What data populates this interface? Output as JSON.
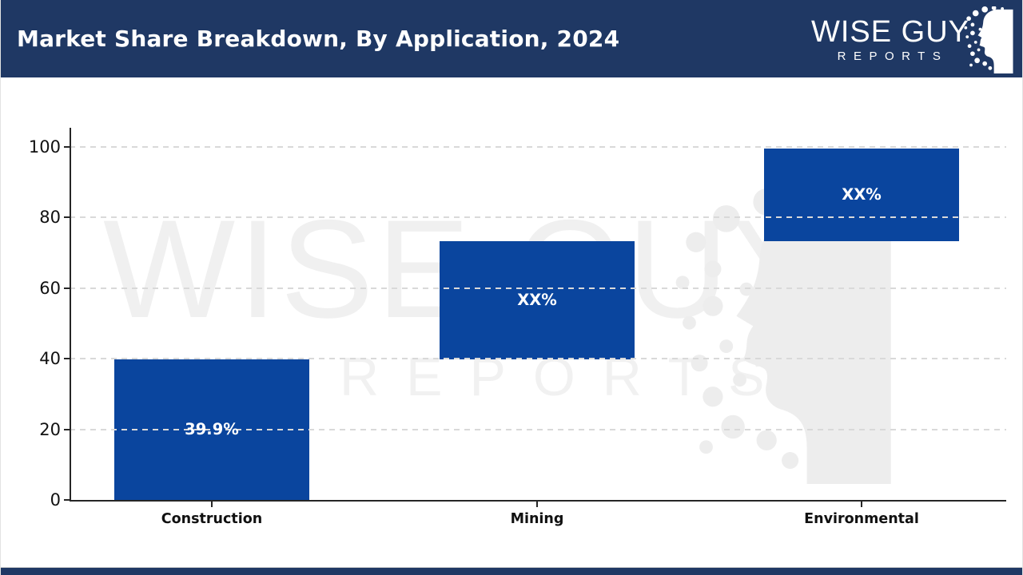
{
  "header": {
    "title": "Market Share Breakdown, By Application, 2024"
  },
  "logo": {
    "name_line": "WISE GUY",
    "sub_line": "REPORTS"
  },
  "watermark": {
    "name_line": "WISE GUY",
    "sub_line": "REPORTS"
  },
  "chart_data": {
    "type": "bar",
    "variant": "waterfall",
    "title": "Market Share Breakdown, By Application, 2024",
    "categories": [
      "Construction",
      "Mining",
      "Environmental"
    ],
    "segments": [
      {
        "category": "Construction",
        "label": "39.9%",
        "start": 0,
        "end": 39.9
      },
      {
        "category": "Mining",
        "label": "XX%",
        "start": 39.9,
        "end": 73.3
      },
      {
        "category": "Environmental",
        "label": "XX%",
        "start": 73.3,
        "end": 99.5
      }
    ],
    "yticks": [
      0,
      20,
      40,
      60,
      80,
      100
    ],
    "ylim": [
      0,
      105
    ],
    "xlabel": "",
    "ylabel": "",
    "grid": "horizontal-dashed",
    "legend": "none",
    "colors": {
      "bar": "#0a459e",
      "bar_label": "#ffffff",
      "gridline": "#d9d9d9",
      "axis": "#262626",
      "tick_label": "#111111",
      "category_label": "#111111",
      "header_bg": "#1f3864",
      "background": "#ffffff"
    }
  }
}
